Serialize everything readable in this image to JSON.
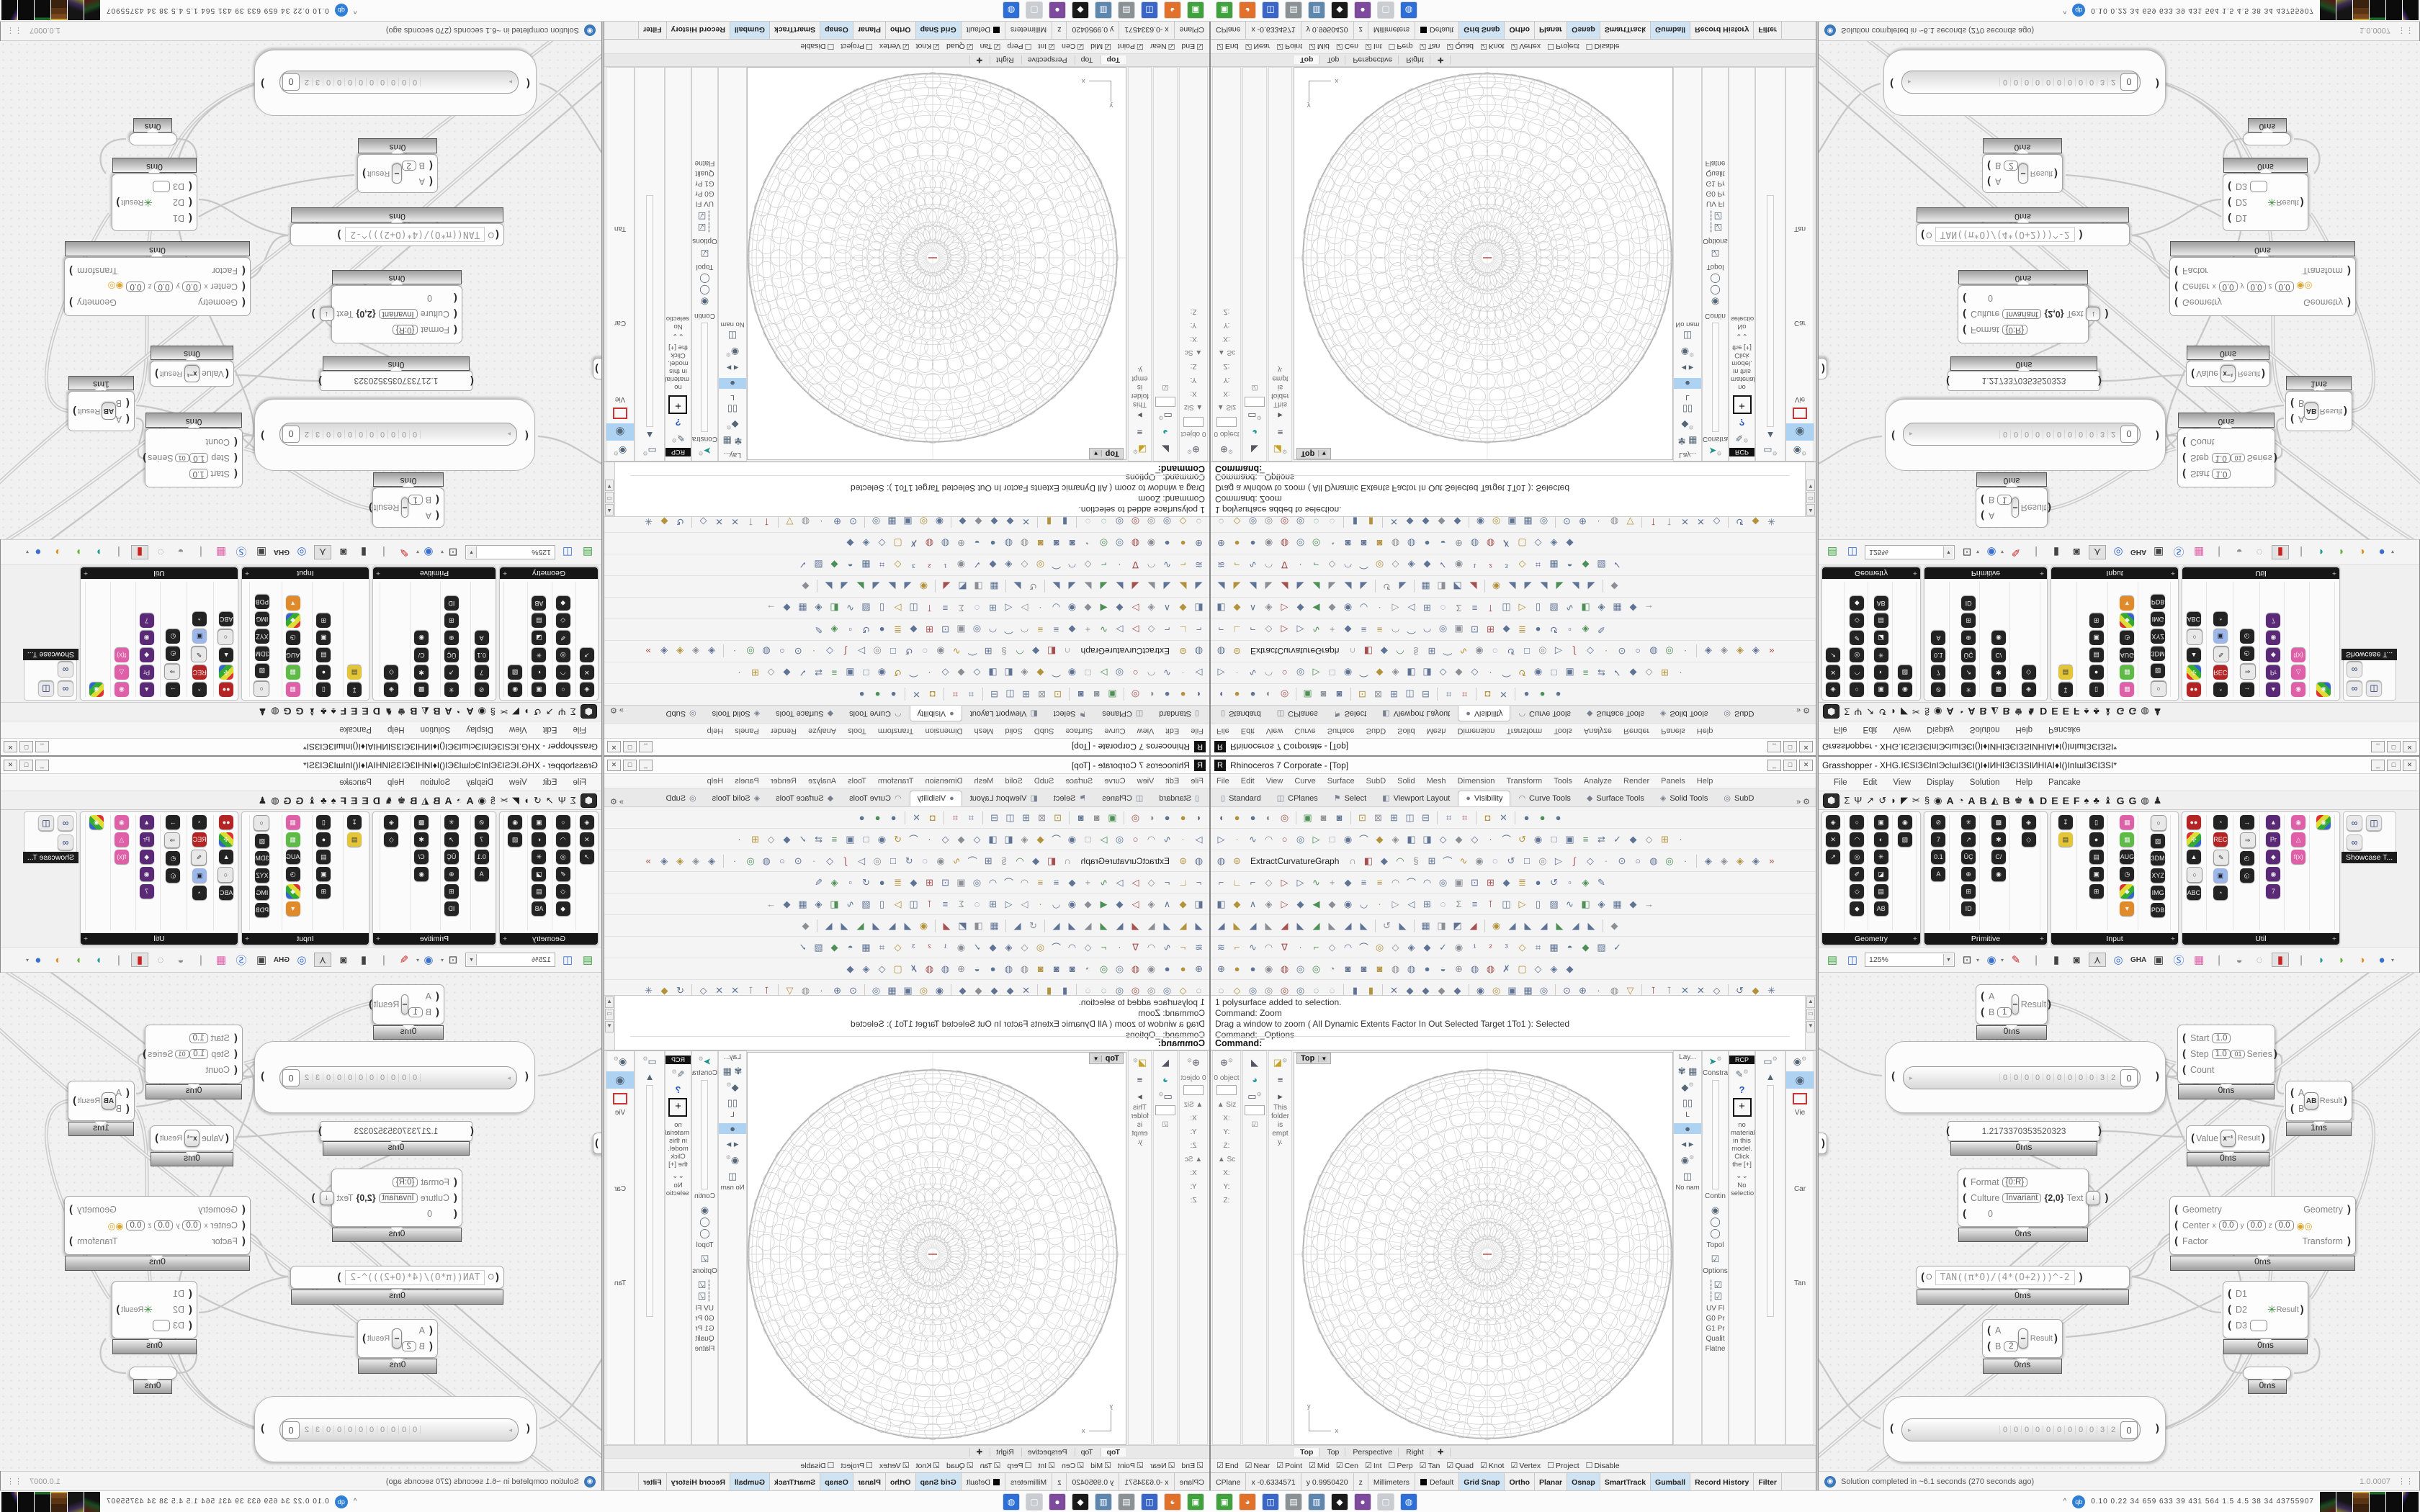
{
  "rhino": {
    "title": "Rhinoceros 7 Corporate - [Top]",
    "logo": "R",
    "window_buttons": [
      "_",
      "□",
      "✕"
    ],
    "menus": [
      "File",
      "Edit",
      "View",
      "Curve",
      "Surface",
      "SubD",
      "Solid",
      "Mesh",
      "Dimension",
      "Transform",
      "Tools",
      "Analyze",
      "Render",
      "Panels",
      "Help"
    ],
    "tabs": [
      {
        "glyph": "▯",
        "label": "Standard"
      },
      {
        "glyph": "◫",
        "label": "CPlanes"
      },
      {
        "glyph": "⚑",
        "label": "Select"
      },
      {
        "glyph": "◧",
        "label": "Viewport Layout"
      },
      {
        "glyph": "●",
        "label": "Visibility",
        "active": true
      },
      {
        "glyph": "◠",
        "label": "Curve Tools"
      },
      {
        "glyph": "◆",
        "label": "Surface Tools"
      },
      {
        "glyph": "◈",
        "label": "Solid Tools"
      },
      {
        "glyph": "◎",
        "label": "SubD"
      }
    ],
    "tabs_more": "» ⚙",
    "toolbar_label": "ExtractCurvatureGraph",
    "toolbar_rows": [
      "◖●●◐◎|▣◙◙|⊡⊠⊞◫⊟|⌗⌗|◘✕|●●●",
      "▷·∿◠○◎▷□◉⌒◆◈◧◨◇◆◇·⌒↺◉□▣≡⇄✓◆◇⊞·",
      "◍⊜@∩◧◆◠§⊞⌒∿◉◌↺□◎▷∫◇·⊙○◍◎·|◈◈◈◈»",
      "⌐∟⌐◇▷▷∿+◆≡≡◠⌒◠◎▣⊡⊞◆≣●↺▫◈✎",
      "◧◆∧◈▷◆◀◆◉◡·▷◁⊞◌Σ≡⊺◫▷▯▨∿◧◈▦◆→",
      "◢◣◢◣◢◣◢◣◢◣|↺◣|▦◨◩◢|◉◢◣◢◣◢◣|◆",
      "≋⌐∿◠∇·⌐◇◠⌒◎◇◈◆✓◉¹²³◇⌗▦◓◆▨✓",
      "⊕●●◉◍◎◎◔◙◙◙◍◍●◒⊕◍◍✗▢◇◈◆",
      "◌◇◎◎◎◎◌◌|▮▮|✕◆◆◆◆|◉◎▣▦◎|⊙⊕·◍▽|⊺⊺✕✕◇|↺◆✳"
    ],
    "command_lines": [
      "1 polysurface added to selection.",
      "Command: Zoom",
      "Drag a window to zoom ( All  Dynamic  Extents  Factor  In  Out  Selected  Target  1To1 ): Selected",
      "Command: _Options"
    ],
    "command_prompt": "Command:",
    "sidebar": {
      "objects": "0 object",
      "size": "▲ Siz",
      "scale": "▲ Sc",
      "x": "X:",
      "y": "Y:",
      "z": "Z:",
      "check": "☑",
      "folder_text": "This folder is empty."
    },
    "viewport": {
      "label": "Top",
      "tabs": [
        {
          "label": "Top",
          "active": true
        },
        {
          "label": "Top"
        },
        {
          "label": "Perspective"
        },
        {
          "label": "Right"
        }
      ],
      "add_tab": "✚",
      "axis_x": "x",
      "axis_y": "y"
    },
    "panels": {
      "col1_header": "Lay...",
      "col1_l": "L",
      "col1_noname": "No nam",
      "col2_constrain": "Constra",
      "col2_continuity": "Contin",
      "col2_topology": "Topol",
      "col2_options": "Options",
      "col2_uv": "UV Fl",
      "col2_g0": "G0 Pr",
      "col2_g1": "G1 Pr",
      "col2_quality": "Qualit",
      "col2_flatness": "Flatne",
      "col3_rcp": "RCP",
      "col3_material": "no material in this model. Click the [+]",
      "col3_chev": "⌄⌄",
      "col3_nosel": "No selectio",
      "col5_view": "Vie",
      "col5_camera": "Car",
      "col5_target": "Tan"
    },
    "osnap": [
      {
        "label": "End",
        "checked": true
      },
      {
        "label": "Near",
        "checked": true
      },
      {
        "label": "Point",
        "checked": true
      },
      {
        "label": "Mid",
        "checked": true
      },
      {
        "label": "Cen",
        "checked": true
      },
      {
        "label": "Int",
        "checked": true
      },
      {
        "label": "Perp",
        "checked": false
      },
      {
        "label": "Tan",
        "checked": true
      },
      {
        "label": "Quad",
        "checked": true
      },
      {
        "label": "Knot",
        "checked": true
      },
      {
        "label": "Vertex",
        "checked": true
      },
      {
        "label": "Project",
        "checked": false
      },
      {
        "label": "Disable",
        "checked": false
      }
    ],
    "status_cells": [
      "CPlane",
      "x -0.6334571",
      "y 0.9950420",
      "z",
      "Millimeters",
      "Default"
    ],
    "status_buttons": [
      {
        "label": "Grid Snap",
        "on": true
      },
      {
        "label": "Ortho",
        "on": false
      },
      {
        "label": "Planar",
        "on": false
      },
      {
        "label": "Osnap",
        "on": true
      },
      {
        "label": "SmartTrack",
        "on": false
      },
      {
        "label": "Gumball",
        "on": true
      },
      {
        "label": "Record History",
        "on": false
      },
      {
        "label": "Filter",
        "on": false
      }
    ]
  },
  "gh": {
    "title": "Grasshopper - XHG.ІЄЅІЗЄІпІЭсІшІЗЄІ()І♦ІИНІЗЄІЗЅІИНІАІ♦І()ІпІшІЗЄІЗЅІ*",
    "window_buttons": [
      "_",
      "□",
      "✕"
    ],
    "menus": [
      "File",
      "Edit",
      "View",
      "Display",
      "Solution",
      "Help",
      "Pancake"
    ],
    "ribbon_tabs": [
      "⬢",
      "Σ",
      "Ψ",
      "↗",
      "↺",
      "◗",
      "◤",
      "✂",
      "§",
      "◉",
      "A",
      "◔",
      "A",
      "B",
      "◭",
      "B",
      "♚",
      "♞",
      "D",
      "E",
      "E",
      "F",
      "♠",
      "♣",
      "♝",
      "G",
      "G",
      "◍",
      "♟"
    ],
    "groups": [
      {
        "label": "Geometry",
        "cols": [
          [
            "k:◈",
            "k:✕",
            "k:↗"
          ],
          [
            "k:○",
            "k:◠",
            "k:◎",
            "k:✐",
            "k:◇",
            "k:◆"
          ],
          [
            "k:▣",
            "k:◐",
            "k:✳",
            "k:◪",
            "k:▤",
            "k:AB"
          ],
          [
            "k:◉",
            "k:▧"
          ]
        ]
      },
      {
        "label": "Primitive",
        "cols": [
          [
            "k:⊘",
            "k:7",
            "k:0.1",
            "k:A"
          ],
          [
            "k:✳",
            "k:↗",
            "k:ÜÇ",
            "k:⊕",
            "k:⊞",
            "k:ID"
          ],
          [
            "k:▩",
            "k:✱",
            "k:C/",
            "k:◉"
          ],
          [
            "k:◈",
            "k:◇"
          ]
        ]
      },
      {
        "label": "Input",
        "cols": [
          [
            "k:↧",
            "y:▤"
          ],
          [
            "k:▯",
            "k:●",
            "k:▤",
            "k:▣",
            "k:⊞"
          ],
          [
            "p:▦",
            "g:▦",
            "k:AUG",
            "k:◷",
            "c:◆",
            "o:▼"
          ],
          [
            "w:○",
            "k:▨",
            "k:3DM",
            "k:XYZ",
            "k:IMG",
            "k:PDB"
          ]
        ]
      },
      {
        "label": "Util",
        "cols": [
          [
            "r:●●",
            "c:✣",
            "k:▲",
            "w:○",
            "k:ABC"
          ],
          [
            "k:◔",
            "r:REC",
            "w:✎",
            "b:▣",
            "k:◔"
          ],
          [
            "k:→",
            "w:⇒",
            "k:◴",
            "k:◵"
          ],
          [
            "u:▲",
            "u:Pr",
            "u:◆",
            "u:◉",
            "u:7"
          ],
          [
            "p:◉",
            "p:△",
            "p:f(x)"
          ],
          [
            "c:◉"
          ]
        ]
      }
    ],
    "group_plus": "+",
    "showcase_tiles": [
      "∞",
      "◫",
      "∞"
    ],
    "showcase_tooltip": "Showcase T...",
    "toolbar_zoom": "125%",
    "status_left": "Solution completed in ~6.1 seconds (270 seconds ago)",
    "status_right": "1.0.0007",
    "slider_digits": [
      "0",
      "0",
      "0",
      "0",
      "0",
      "0",
      "0",
      "0",
      "0",
      "3",
      "2"
    ],
    "slider_big": "0",
    "nodes": {
      "sub1": {
        "a": "A",
        "b": "B",
        "b_val": "1",
        "icon": "−",
        "out": "Result",
        "time": "0ms"
      },
      "sub2": {
        "a": "A",
        "b": "B",
        "b_val": "2",
        "icon": "−",
        "out": "Result",
        "time": "0ms"
      },
      "series": {
        "start": "Start",
        "start_val": "1.0",
        "step": "Step",
        "step_val": "1.0",
        "count": "Count",
        "icon": "01",
        "out": "Series",
        "time": "0ms"
      },
      "pow": {
        "a": "A",
        "b": "B",
        "icon": "AB",
        "out": "Result",
        "time": "1ms"
      },
      "panel": {
        "text": "1.2173370353520323",
        "time": "0ms"
      },
      "inverse": {
        "in": "Value",
        "icon": "x⁻¹",
        "out": "Result",
        "time": "0ms"
      },
      "format": {
        "l1": "Format",
        "v1": "{0:R}",
        "l2": "Culture",
        "v2": "Invariant",
        "digits": "{2,0}",
        "out": "Text",
        "btn": "↓",
        "l3": "0",
        "time": "0ms"
      },
      "transform": {
        "in1": "Geometry",
        "in2": "Center",
        "xl": "x",
        "xv": "0.0",
        "yl": "y",
        "yv": "0.0",
        "zl": "z",
        "zv": "0.0",
        "in3": "Factor",
        "out1": "Geometry",
        "out2": "Transform",
        "time": "0ms"
      },
      "expr": {
        "in": "O",
        "code": "TAN((π*O)/(4*(O+2)))^-2",
        "time": "0ms"
      },
      "dispatch": {
        "d1": "D1",
        "d2": "D2",
        "d3": "D3",
        "out": "Result",
        "time": "0ms"
      },
      "small": {
        "time": "0ms"
      }
    }
  },
  "taskbar": {
    "apps": [
      {
        "c": "#3fa23c",
        "g": "▣"
      },
      {
        "c": "#e0702a",
        "g": "◕"
      },
      {
        "c": "#3a66c8",
        "g": "◫"
      },
      {
        "c": "#8a9296",
        "g": "▤"
      },
      {
        "c": "#5e87b0",
        "g": "▥"
      },
      {
        "c": "#1a1a1a",
        "g": "◆"
      },
      {
        "c": "#7d4a9e",
        "g": "●"
      },
      {
        "c": "#c9ccd0",
        "g": "▢"
      },
      {
        "c": "#2d6fd6",
        "g": "◍"
      }
    ],
    "chevron": "^",
    "qb": "qb",
    "tray_text": "0.10 0.22   34   659  633   39   431  564   1.5   4.5   38   34   43755907"
  }
}
